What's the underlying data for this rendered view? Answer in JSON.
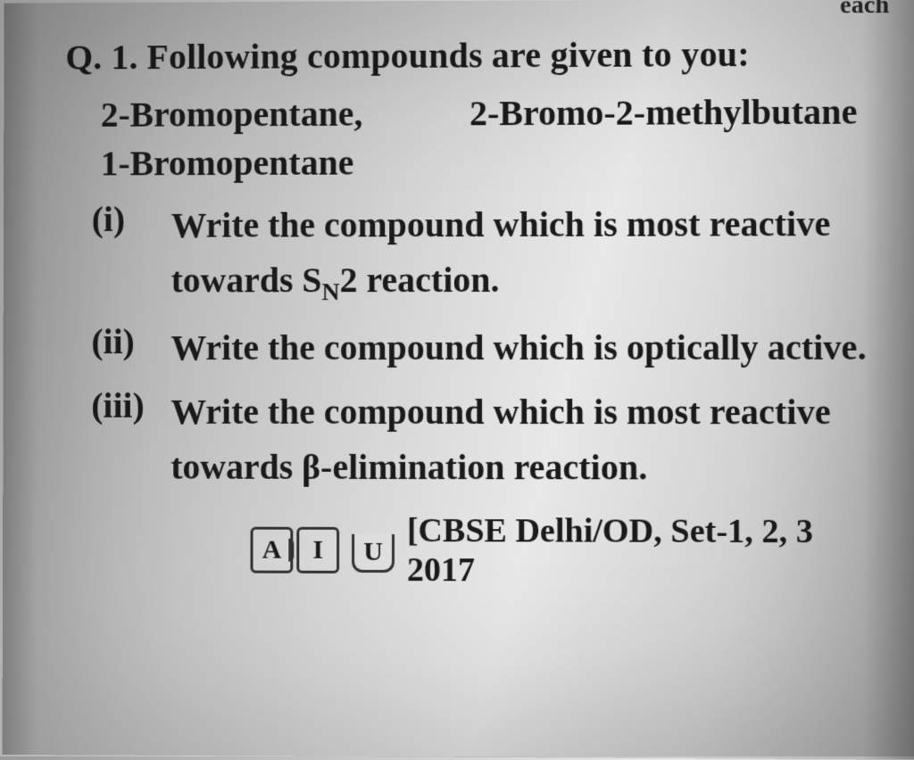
{
  "top_fragment": "each",
  "question_label": "Q. 1.",
  "question_text": "Following compounds are given to you:",
  "compounds": {
    "c1": "2-Bromopentane,",
    "c2": "2-Bromo-2-methylbutane",
    "c3": "1-Bromopentane"
  },
  "items": [
    {
      "num": "(i)",
      "pre": "Write the compound which is most reactive towards S",
      "sub": "N",
      "post": "2 reaction."
    },
    {
      "num": "(ii)",
      "text": "Write the compound which is optically active."
    },
    {
      "num": "(iii)",
      "text": "Write the compound which is most reactive towards β-elimination reaction."
    }
  ],
  "badges": {
    "a": "A",
    "i": "I",
    "u": "U"
  },
  "source": "[CBSE Delhi/OD, Set-1, 2, 3 2017"
}
